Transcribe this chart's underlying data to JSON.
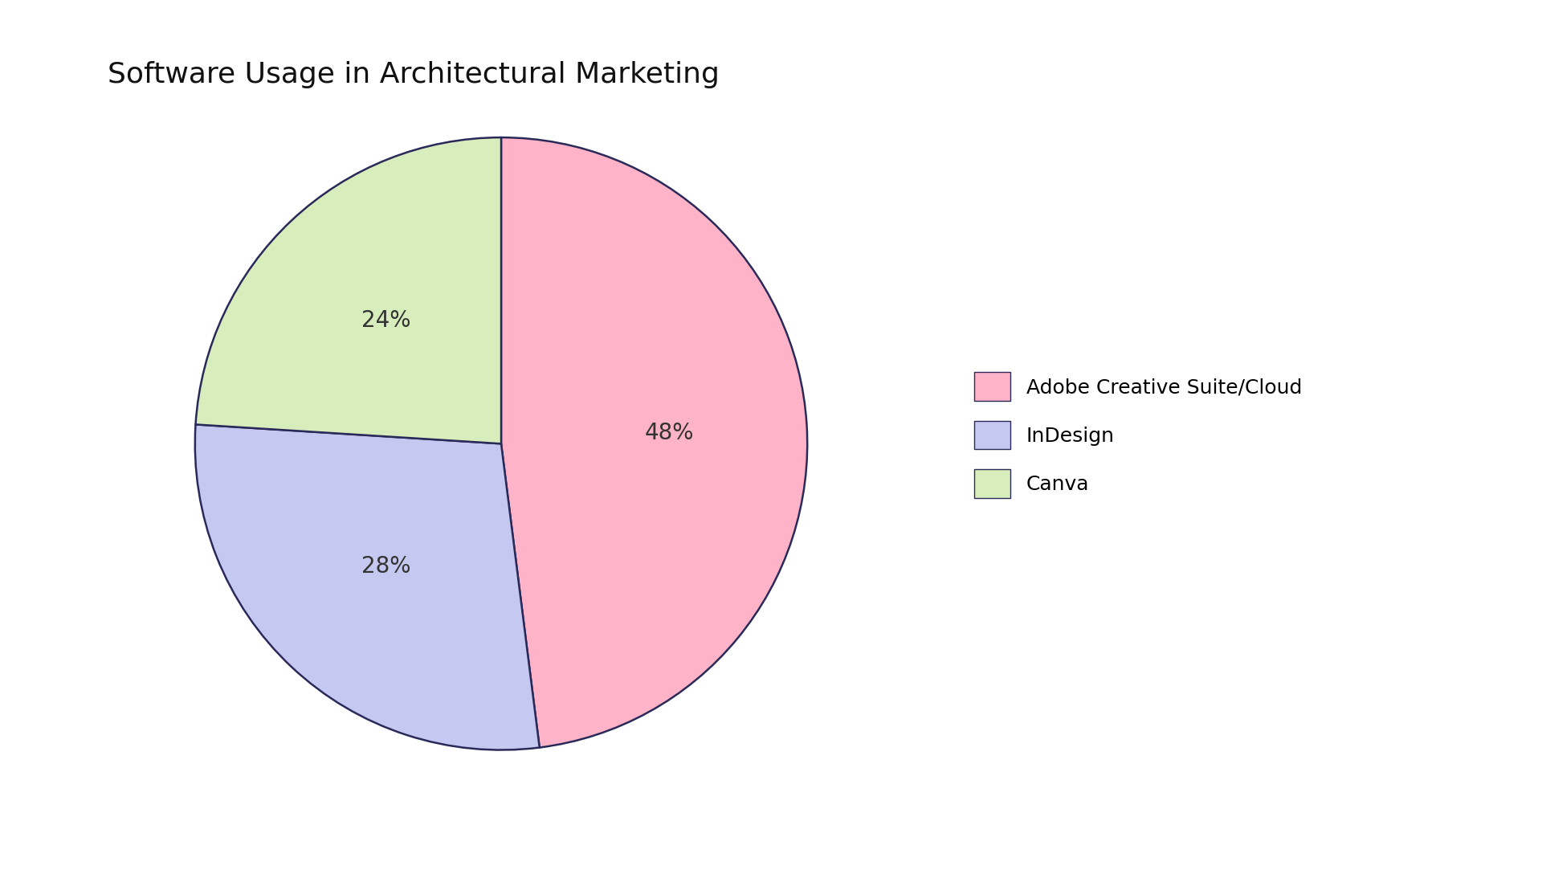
{
  "title": "Software Usage in Architectural Marketing",
  "title_fontsize": 26,
  "title_fontweight": "normal",
  "labels": [
    "Adobe Creative Suite/Cloud",
    "InDesign",
    "Canva"
  ],
  "values": [
    48,
    28,
    24
  ],
  "colors": [
    "#FFB3C8",
    "#C5C8F0",
    "#D8EDBC"
  ],
  "edge_color": "#2a2a5a",
  "edge_linewidth": 1.8,
  "pct_labels": [
    "48%",
    "28%",
    "24%"
  ],
  "pct_fontsize": 20,
  "legend_fontsize": 18,
  "startangle": 90,
  "background_color": "#ffffff",
  "figsize": [
    19.2,
    10.83
  ],
  "dpi": 100
}
